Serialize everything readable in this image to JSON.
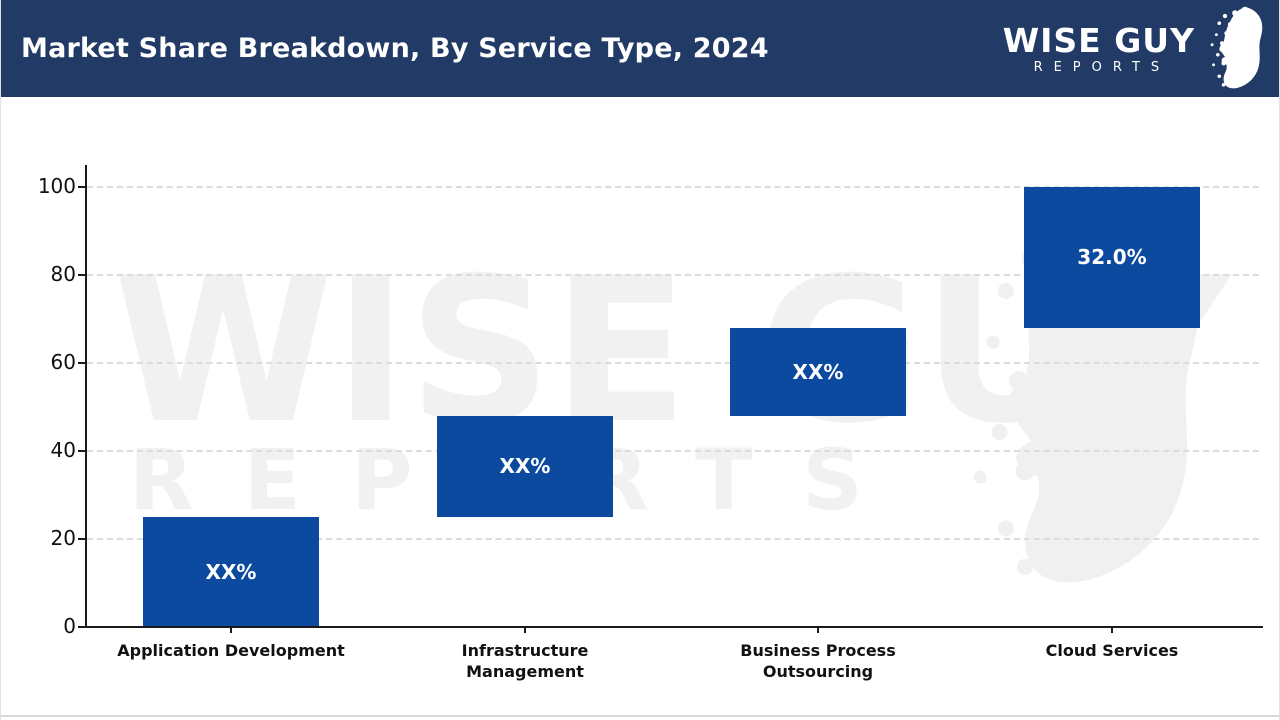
{
  "header": {
    "title": "Market Share Breakdown, By Service Type, 2024",
    "logo": {
      "line1": "WISE GUY",
      "line2": "REPORTS"
    }
  },
  "watermark": {
    "line1": "WISE GUY",
    "line2": "REPORTS"
  },
  "chart_data": {
    "type": "bar",
    "subtype": "waterfall (floating stacked segments)",
    "title": "Market Share Breakdown, By Service Type, 2024",
    "categories": [
      "Application Development",
      "Infrastructure Management",
      "Business Process Outsourcing",
      "Cloud Services"
    ],
    "segments": [
      {
        "category": "Application Development",
        "start": 0,
        "end": 25,
        "label": "XX%"
      },
      {
        "category": "Infrastructure Management",
        "start": 25,
        "end": 48,
        "label": "XX%"
      },
      {
        "category": "Business Process Outsourcing",
        "start": 48,
        "end": 68,
        "label": "XX%"
      },
      {
        "category": "Cloud Services",
        "start": 68,
        "end": 100,
        "label": "32.0%"
      }
    ],
    "xlabel": "",
    "ylabel": "",
    "ylim": [
      0,
      100
    ],
    "yticks": [
      0,
      20,
      40,
      60,
      80,
      100
    ],
    "grid": "horizontal dashed",
    "legend": "none"
  },
  "colors": {
    "header_bg": "#213A66",
    "bar": "#0B4A9E",
    "bar_label": "#FFFFFF",
    "grid": "#DCDCDC",
    "axis": "#1A1A1A",
    "tick_label": "#111111",
    "watermark": "#F1F1F1",
    "page_bg": "#FFFFFF"
  }
}
